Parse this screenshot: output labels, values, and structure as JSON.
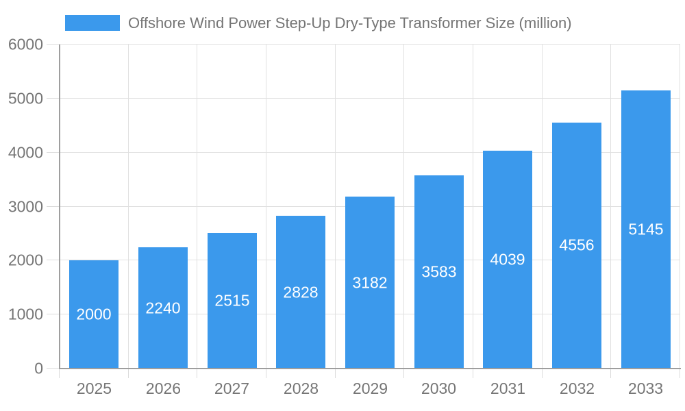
{
  "chart_data": {
    "type": "bar",
    "title": "Offshore Wind Power Step-Up Dry-Type Transformer Size (million)",
    "legend": {
      "position": "top-left",
      "entries": [
        "Offshore Wind Power Step-Up Dry-Type Transformer Size (million)"
      ]
    },
    "categories": [
      "2025",
      "2026",
      "2027",
      "2028",
      "2029",
      "2030",
      "2031",
      "2032",
      "2033"
    ],
    "series": [
      {
        "name": "Offshore Wind Power Step-Up Dry-Type Transformer Size (million)",
        "values": [
          2000,
          2240,
          2515,
          2828,
          3182,
          3583,
          4039,
          4556,
          5145
        ]
      }
    ],
    "value_labels": [
      "2000",
      "2240",
      "2515",
      "2828",
      "3182",
      "3583",
      "4039",
      "4556",
      "5145"
    ],
    "xlabel": "",
    "ylabel": "",
    "ylim": [
      0,
      6000
    ],
    "ytick_step": 1000,
    "ytick_labels": [
      "0",
      "1000",
      "2000",
      "3000",
      "4000",
      "5000",
      "6000"
    ],
    "grid": true,
    "colors": {
      "bar": "#3B99EC",
      "value_label": "#FFFFFF",
      "axis_text": "#757575",
      "legend_text": "#757575",
      "gridline": "#E0E0E0",
      "tick": "#DBDBDB",
      "axis_line": "#9E9E9E",
      "background": "#FFFFFF"
    }
  }
}
